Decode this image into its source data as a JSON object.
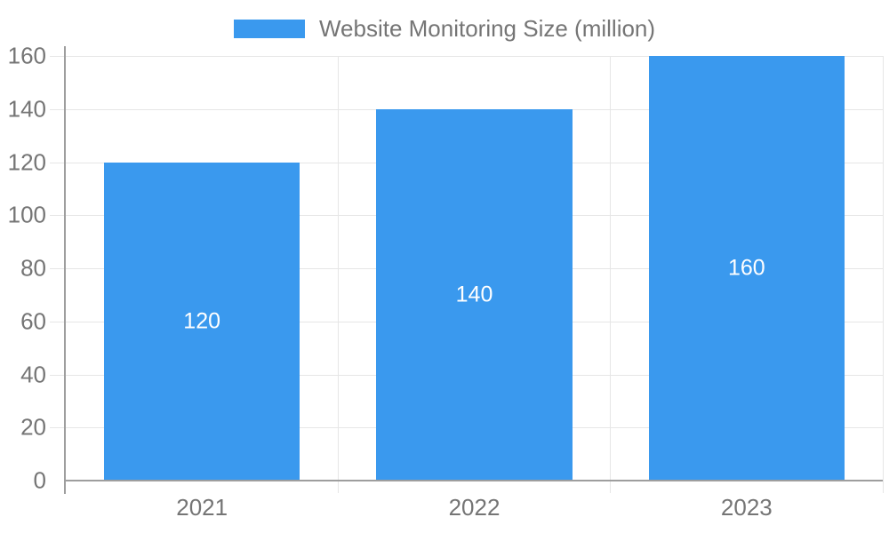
{
  "chart_data": {
    "type": "bar",
    "title": "Website Monitoring Size (million)",
    "categories": [
      "2021",
      "2022",
      "2023"
    ],
    "values": [
      120,
      140,
      160
    ],
    "value_labels": [
      "120",
      "140",
      "160"
    ],
    "series": [
      {
        "name": "Website Monitoring Size (million)",
        "values": [
          120,
          140,
          160
        ]
      }
    ],
    "xlabel": "",
    "ylabel": "",
    "ylim": [
      0,
      160
    ],
    "yticks": [
      0,
      20,
      40,
      60,
      80,
      100,
      120,
      140,
      160
    ],
    "grid": "on",
    "legend_position": "top",
    "bar_width_fraction": 0.72
  },
  "legend": {
    "label": "Website Monitoring Size (million)"
  },
  "colors": {
    "bar": "#3a99ee",
    "axis_line": "#9e9e9e",
    "gridline": "#e6e6e6",
    "tick_label": "#757575",
    "value_label": "#ffffff",
    "background": "#ffffff"
  }
}
